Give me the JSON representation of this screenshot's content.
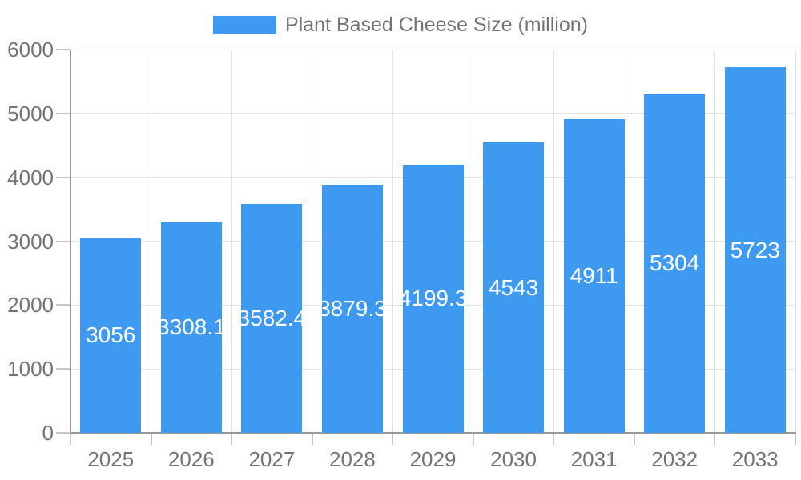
{
  "legend": {
    "label": "Plant Based Cheese Size (million)"
  },
  "chart_data": {
    "type": "bar",
    "title": "Plant Based Cheese Size (million)",
    "categories": [
      "2025",
      "2026",
      "2027",
      "2028",
      "2029",
      "2030",
      "2031",
      "2032",
      "2033"
    ],
    "series": [
      {
        "name": "Plant Based Cheese Size (million)",
        "values": [
          3056,
          3308.1,
          3582.4,
          3879.3,
          4199.3,
          4543,
          4911,
          5304,
          5723
        ],
        "value_labels": [
          "3056",
          "3308.1",
          "3582.4",
          "3879.3",
          "4199.3",
          "4543",
          "4911",
          "5304",
          "5723"
        ]
      }
    ],
    "xlabel": "",
    "ylabel": "",
    "ylim": [
      0,
      6000
    ],
    "y_ticks": [
      0,
      1000,
      2000,
      3000,
      4000,
      5000,
      6000
    ],
    "grid": true,
    "legend_position": "top",
    "value_label_position": "inside-center",
    "colors": {
      "bar": "#3D9AF0",
      "grid": "#E3E3E3",
      "axis_line": "#999999",
      "tick": "#C6C6C6",
      "text": "#757575",
      "value_text": "#FFFFFF",
      "background": "#FFFFFF"
    }
  }
}
